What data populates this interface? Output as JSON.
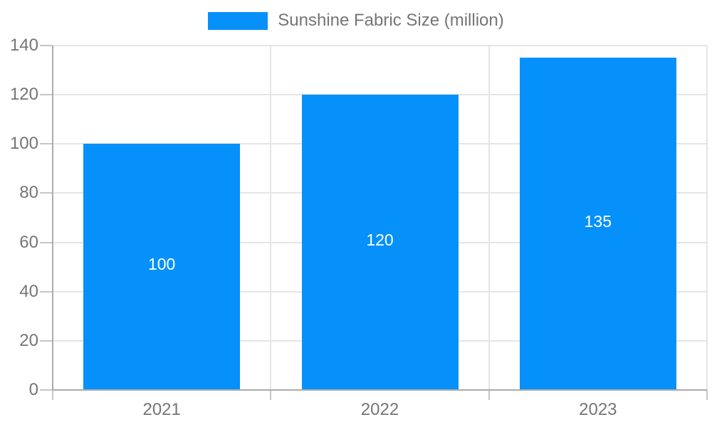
{
  "colors": {
    "bar": "#0690fa",
    "grid": "#e5e5e5",
    "axis": "#ababab",
    "tick": "#c6c6c6",
    "text": "#757575",
    "bar_label": "#ffffff",
    "background": "#ffffff"
  },
  "legend": {
    "label": "Sunshine Fabric Size (million)"
  },
  "chart_data": {
    "type": "bar",
    "title": "",
    "categories": [
      "2021",
      "2022",
      "2023"
    ],
    "series": [
      {
        "name": "Sunshine Fabric Size (million)",
        "values": [
          100,
          120,
          135
        ]
      }
    ],
    "data_labels": [
      "100",
      "120",
      "135"
    ],
    "xlabel": "",
    "ylabel": "",
    "ylim": [
      0,
      140
    ],
    "yticks": [
      0,
      20,
      40,
      60,
      80,
      100,
      120,
      140
    ],
    "grid": "on",
    "legend_position": "top-center"
  }
}
